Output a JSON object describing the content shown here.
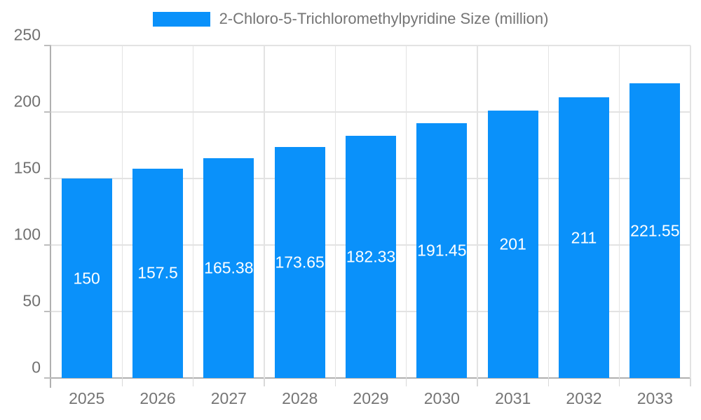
{
  "chart_data": {
    "type": "bar",
    "title": "",
    "legend": {
      "position": "top",
      "entries": [
        "2-Chloro-5-Trichloromethylpyridine Size (million)"
      ]
    },
    "categories": [
      "2025",
      "2026",
      "2027",
      "2028",
      "2029",
      "2030",
      "2031",
      "2032",
      "2033"
    ],
    "series": [
      {
        "name": "2-Chloro-5-Trichloromethylpyridine Size (million)",
        "values": [
          150,
          157.5,
          165.38,
          173.65,
          182.33,
          191.45,
          201,
          211,
          221.55
        ],
        "data_labels": [
          "150",
          "157.5",
          "165.38",
          "173.65",
          "182.33",
          "191.45",
          "201",
          "211",
          "221.55"
        ]
      }
    ],
    "xlabel": "",
    "ylabel": "",
    "ylim": [
      0,
      250
    ],
    "ytick_step": 50,
    "ytick_labels": [
      "0",
      "50",
      "100",
      "150",
      "200",
      "250"
    ],
    "grid": true,
    "data_label_position": "inside-center",
    "colors": {
      "bar": "#0a91fa",
      "grid": "#e3e3e3",
      "axis": "#b0b0b0",
      "tick": "#bdbdbd",
      "text": "#757575",
      "bar_label_text": "#ffffff"
    }
  }
}
